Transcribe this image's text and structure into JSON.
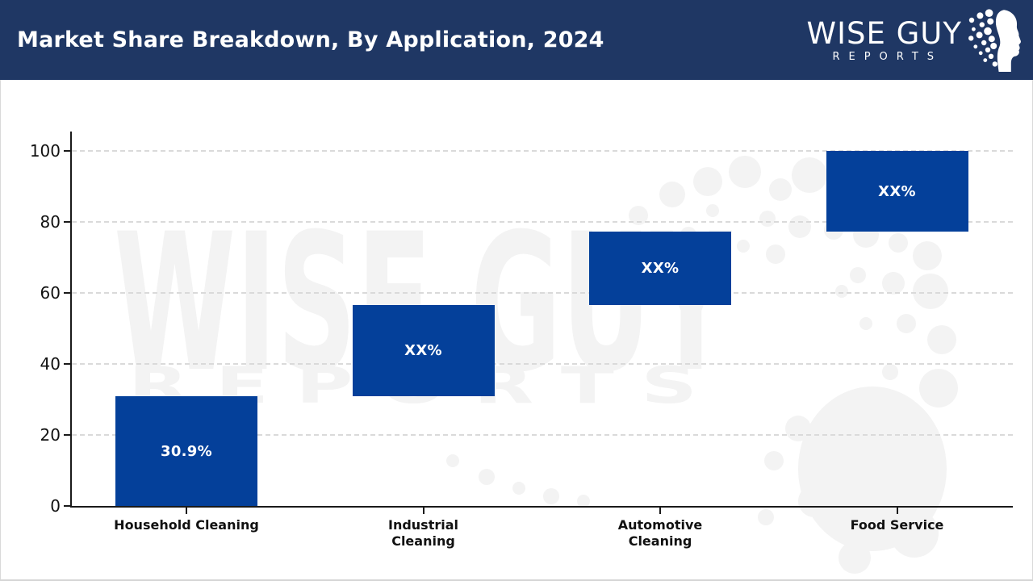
{
  "header": {
    "title": "Market Share Breakdown, By Application, 2024",
    "bg_color": "#1f3764",
    "logo": {
      "wordmark": "WISE GUY",
      "subtitle": "REPORTS"
    }
  },
  "watermark": {
    "line1": "WISE GUY",
    "line2": "R E P O R T S"
  },
  "chart_data": {
    "type": "bar",
    "subtype": "waterfall",
    "title": "Market Share Breakdown, By Application, 2024",
    "categories": [
      "Household Cleaning",
      "Industrial Cleaning",
      "Automotive Cleaning",
      "Food Service"
    ],
    "category_lines": [
      [
        "Household Cleaning"
      ],
      [
        "Industrial",
        "Cleaning"
      ],
      [
        "Automotive",
        "Cleaning"
      ],
      [
        "Food Service"
      ]
    ],
    "segments": [
      {
        "category": "Household Cleaning",
        "label": "30.9%",
        "start": 0,
        "end": 30.9,
        "value": 30.9
      },
      {
        "category": "Industrial Cleaning",
        "label": "XX%",
        "start": 30.9,
        "end": 56.6,
        "value": 25.7
      },
      {
        "category": "Automotive Cleaning",
        "label": "XX%",
        "start": 56.6,
        "end": 77.2,
        "value": 20.6
      },
      {
        "category": "Food Service",
        "label": "XX%",
        "start": 77.2,
        "end": 100.0,
        "value": 22.8
      }
    ],
    "yticks": [
      0,
      20,
      40,
      60,
      80,
      100
    ],
    "ylim": [
      0,
      105.5
    ],
    "grid": "horizontal-dashed",
    "legend": "none",
    "bar_color": "#04409a",
    "bar_label_color": "#ffffff",
    "axis_color": "#1a1a1a",
    "grid_color": "#dadada",
    "watermark_color": "#f3f3f3"
  }
}
